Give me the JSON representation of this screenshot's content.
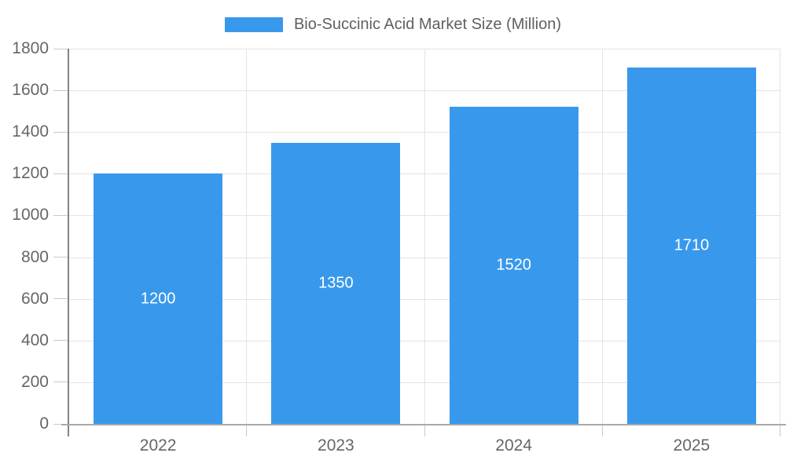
{
  "chart_data": {
    "type": "bar",
    "title": "Bio-Succinic Acid Market Size (Million)",
    "categories": [
      "2022",
      "2023",
      "2024",
      "2025"
    ],
    "values": [
      1200,
      1350,
      1520,
      1710
    ],
    "xlabel": "",
    "ylabel": "",
    "ylim": [
      0,
      1800
    ],
    "yticks": [
      0,
      200,
      400,
      600,
      800,
      1000,
      1200,
      1400,
      1600,
      1800
    ],
    "grid": "on",
    "legend_position": "top-center",
    "colors": {
      "bar": "#3899EC",
      "value_label": "#ffffff",
      "axis_text": "#666666",
      "title_text": "#606060",
      "gridline": "#e4e4e4",
      "tick": "#c9c9c9",
      "y_axis_line": "#848484",
      "x_axis_line": "#a9a9a9",
      "background": "#ffffff"
    }
  }
}
